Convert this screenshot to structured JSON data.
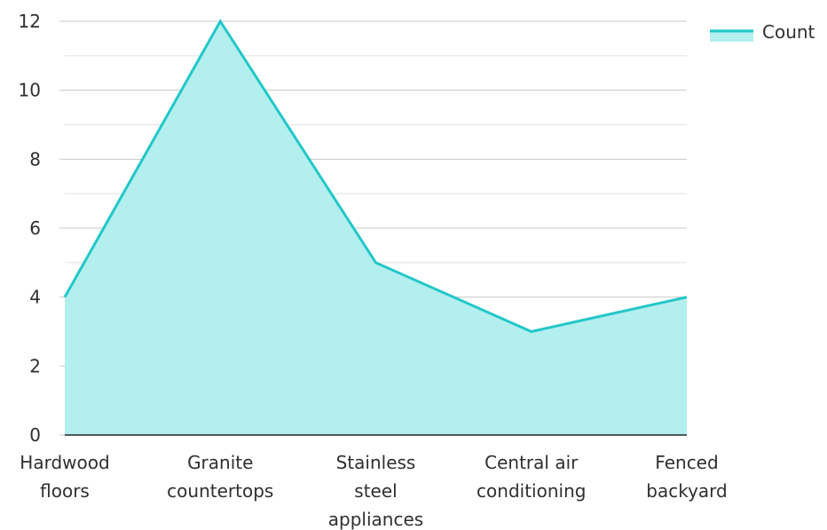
{
  "chart_data": {
    "type": "area",
    "categories": [
      [
        "Hardwood",
        "floors"
      ],
      [
        "Granite",
        "countertops"
      ],
      [
        "Stainless",
        "steel",
        "appliances"
      ],
      [
        "Central air",
        "conditioning"
      ],
      [
        "Fenced",
        "backyard"
      ]
    ],
    "series": [
      {
        "name": "Count",
        "values": [
          4,
          12,
          5,
          3,
          4
        ]
      }
    ],
    "ylim": [
      0,
      12
    ],
    "yticks": [
      0,
      2,
      4,
      6,
      8,
      10,
      12
    ],
    "grid": true,
    "legend_position": "top-right",
    "colors": {
      "line": "#22c7c9",
      "fill": "#b3efee",
      "grid_major": "#c9c9c9",
      "grid_minor": "#e2e2e2",
      "axis": "#222222",
      "text": "#2f2f2f"
    }
  }
}
